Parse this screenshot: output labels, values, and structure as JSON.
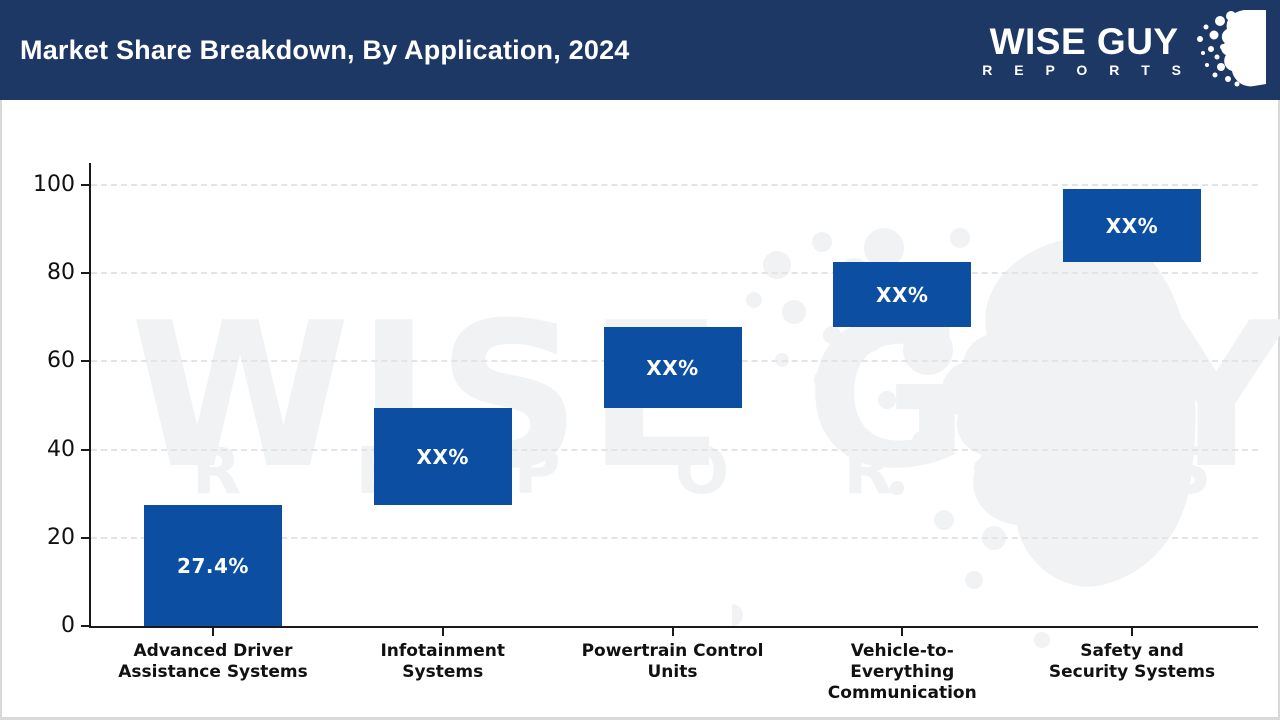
{
  "header": {
    "title": "Market Share Breakdown, By Application, 2024",
    "logo": {
      "line1": "WISE GUY",
      "line2": "R E P O R T S"
    }
  },
  "watermark": {
    "line1": "WISE GUY",
    "line2": "R E P O R T S"
  },
  "chart_data": {
    "type": "bar",
    "subtype": "waterfall",
    "title": "Market Share Breakdown, By Application, 2024",
    "categories": [
      "Advanced Driver\nAssistance Systems",
      "Infotainment\nSystems",
      "Powertrain Control\nUnits",
      "Vehicle-to-\nEverything\nCommunication",
      "Safety and\nSecurity Systems"
    ],
    "segments": [
      {
        "name": "Advanced Driver Assistance Systems",
        "start": 0,
        "end": 27.4,
        "value_label": "27.4%"
      },
      {
        "name": "Infotainment Systems",
        "start": 27.4,
        "end": 49.4,
        "value_label": "XX%"
      },
      {
        "name": "Powertrain Control Units",
        "start": 49.4,
        "end": 67.8,
        "value_label": "XX%"
      },
      {
        "name": "Vehicle-to-Everything Communication",
        "start": 67.8,
        "end": 82.5,
        "value_label": "XX%"
      },
      {
        "name": "Safety and Security Systems",
        "start": 82.5,
        "end": 99.0,
        "value_label": "XX%"
      }
    ],
    "y_ticks": [
      0,
      20,
      40,
      60,
      80,
      100
    ],
    "ylim": [
      0,
      105
    ],
    "grid": "horizontal-dashed",
    "legend": "none",
    "bar_color": "#0b4ea2",
    "value_label_color": "#ffffff"
  },
  "colors": {
    "header_bg": "#1e3866",
    "bar_blue": "#0b4ea2",
    "watermark": "#f1f2f4",
    "gridline": "#e4e4e6",
    "axis": "#1a1a1a"
  }
}
